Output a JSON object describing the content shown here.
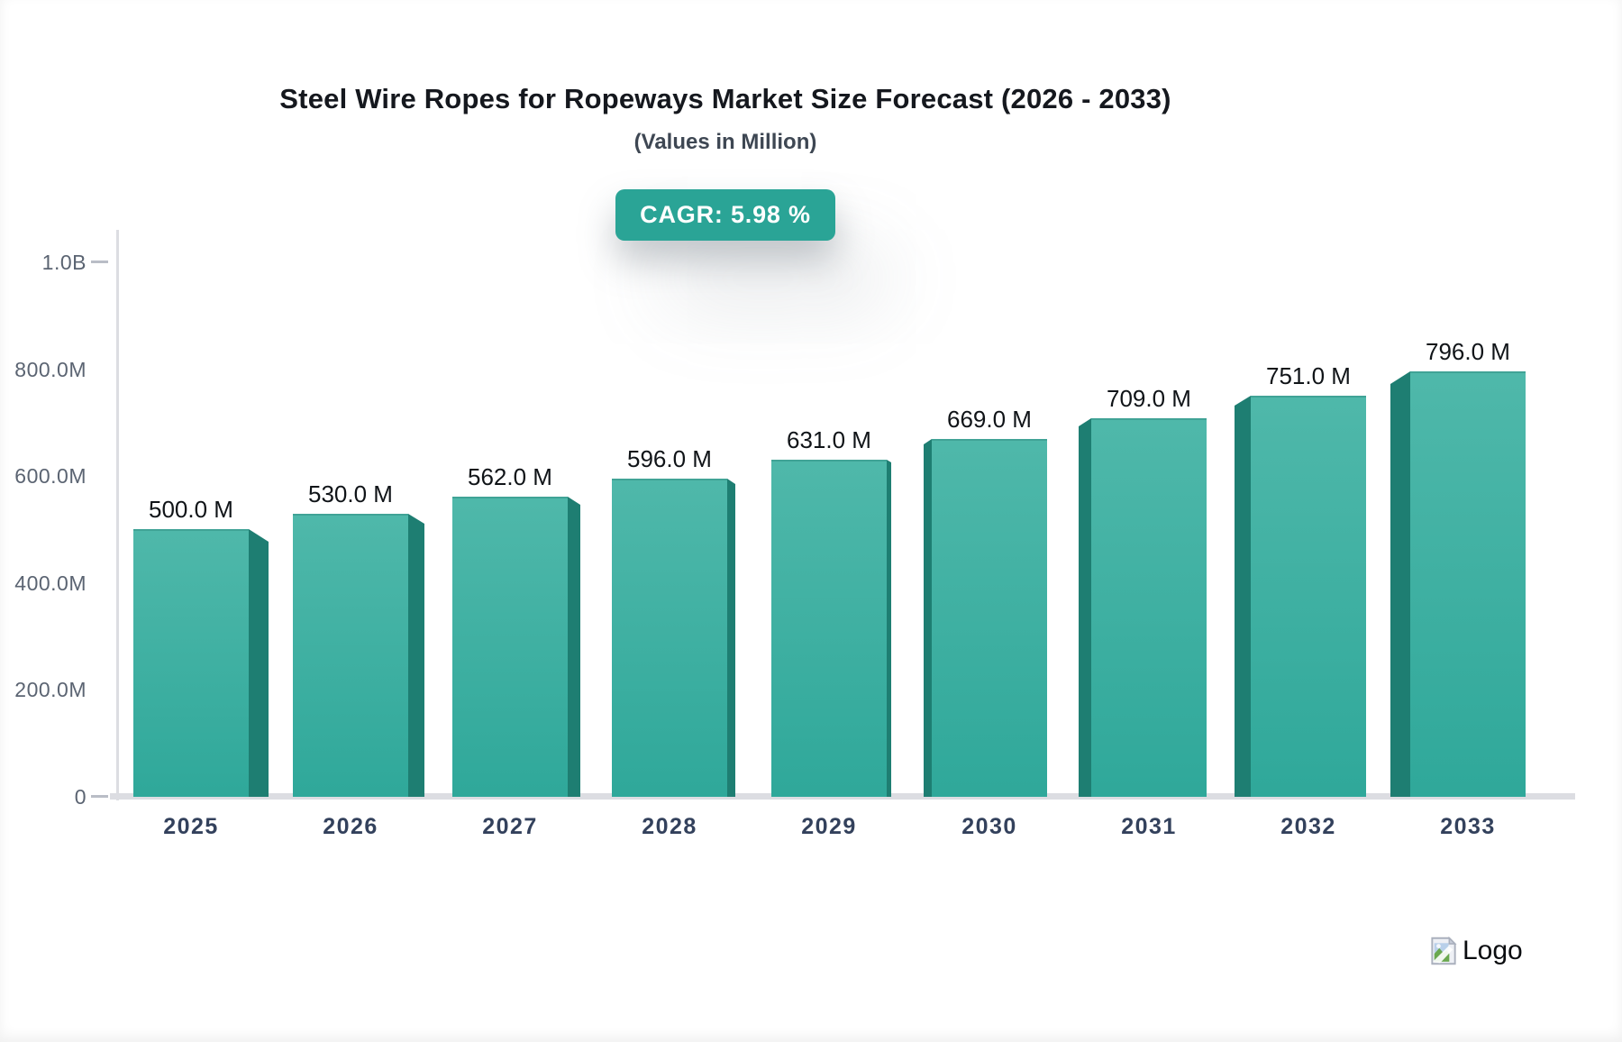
{
  "header": {
    "title": "Steel Wire Ropes for Ropeways Market Size Forecast (2026 - 2033)",
    "subtitle": "(Values in Million)",
    "cagr_badge": "CAGR: 5.98 %"
  },
  "chart_data": {
    "type": "bar",
    "title": "Steel Wire Ropes for Ropeways Market Size Forecast (2026 - 2033)",
    "subtitle": "(Values in Million)",
    "unit": "Million",
    "categories": [
      "2025",
      "2026",
      "2027",
      "2028",
      "2029",
      "2030",
      "2031",
      "2032",
      "2033"
    ],
    "values": [
      500,
      530,
      562,
      596,
      631,
      669,
      709,
      751,
      796
    ],
    "value_labels": [
      "500.0 M",
      "530.0 M",
      "562.0 M",
      "596.0 M",
      "631.0 M",
      "669.0 M",
      "709.0 M",
      "751.0 M",
      "796.0 M"
    ],
    "ylim": [
      0,
      1000
    ],
    "yticks": [
      {
        "label": "1.0B",
        "value": 1000,
        "dash": true
      },
      {
        "label": "800.0M",
        "value": 800,
        "dash": false
      },
      {
        "label": "600.0M",
        "value": 600,
        "dash": false
      },
      {
        "label": "400.0M",
        "value": 400,
        "dash": false
      },
      {
        "label": "200.0M",
        "value": 200,
        "dash": false
      },
      {
        "label": "0",
        "value": 0,
        "dash": true
      }
    ],
    "grid": false,
    "legend": "none",
    "bar_style": "3d-beveled",
    "cagr": "5.98 %"
  },
  "colors": {
    "bar_front_top": "#4FB8AA",
    "bar_front_bottom": "#2FA89A",
    "bar_side": "#1E7E72",
    "badge_bg": "#2AA496",
    "axis_line": "#DCDDE2",
    "tick_text": "#5B6472",
    "year_text": "#33415C",
    "value_text": "#101418",
    "title_text": "#15181E",
    "subtitle_text": "#3E4753"
  },
  "footer": {
    "logo_text": "Logo"
  }
}
